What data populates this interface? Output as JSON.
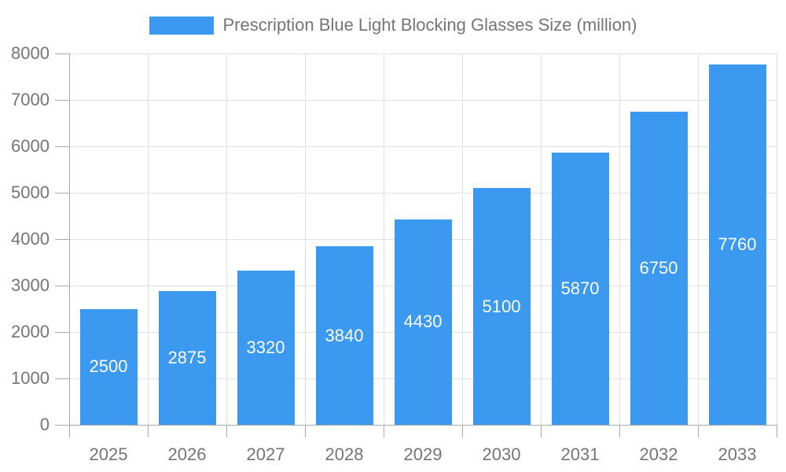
{
  "chart_data": {
    "type": "bar",
    "series_name": "Prescription Blue Light Blocking Glasses Size (million)",
    "categories": [
      "2025",
      "2026",
      "2027",
      "2028",
      "2029",
      "2030",
      "2031",
      "2032",
      "2033"
    ],
    "values": [
      2500,
      2875,
      3320,
      3840,
      4430,
      5100,
      5870,
      6750,
      7760
    ],
    "value_labels": [
      "2500",
      "2875",
      "3320",
      "3840",
      "4430",
      "5100",
      "5870",
      "6750",
      "7760"
    ],
    "ylim": [
      0,
      8000
    ],
    "yticks": [
      0,
      1000,
      2000,
      3000,
      4000,
      5000,
      6000,
      7000,
      8000
    ],
    "ytick_labels": [
      "0",
      "1000",
      "2000",
      "3000",
      "4000",
      "5000",
      "6000",
      "7000",
      "8000"
    ],
    "grid": "horizontal and vertical gridlines on",
    "legend_position": "top-center",
    "value_label_position": "inside-center",
    "colors": {
      "bar": "#3b99f0",
      "grid_line": "#e0e0e0",
      "axis_line": "#aaaaaa",
      "tick_text": "#757575",
      "value_label": "#ffffff",
      "background": "#ffffff"
    }
  }
}
